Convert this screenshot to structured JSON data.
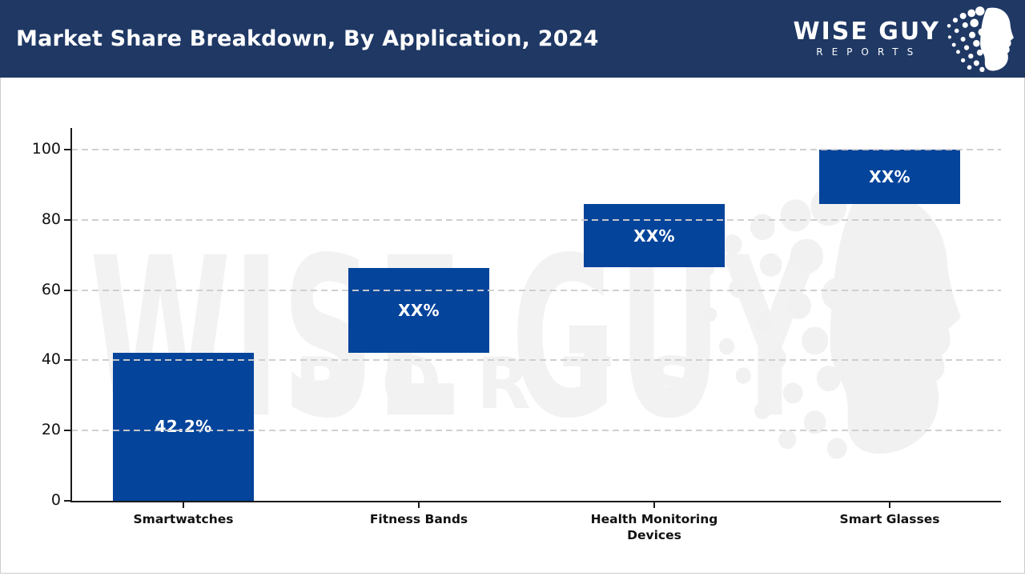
{
  "header": {
    "title": "Market Share Breakdown, By Application, 2024",
    "logo": {
      "line1": "WISE GUY",
      "line2": "REPORTS"
    }
  },
  "watermark": {
    "word1": "WISE GUY",
    "word2": "REPORTS"
  },
  "chart_data": {
    "type": "bar",
    "subtype": "waterfall",
    "title": "Market Share Breakdown, By Application, 2024",
    "xlabel": "",
    "ylabel": "",
    "ylim": [
      0,
      100
    ],
    "yticks": [
      0,
      20,
      40,
      60,
      80,
      100
    ],
    "grid": "dashed-horizontal",
    "legend": "none",
    "categories": [
      "Smartwatches",
      "Fitness Bands",
      "Health Monitoring Devices",
      "Smart Glasses"
    ],
    "segments": [
      {
        "category": "Smartwatches",
        "from": 0,
        "to": 42.2,
        "label": "42.2%"
      },
      {
        "category": "Fitness Bands",
        "from": 42.2,
        "to": 66.4,
        "label": "XX%"
      },
      {
        "category": "Health Monitoring Devices",
        "from": 66.4,
        "to": 84.4,
        "label": "XX%"
      },
      {
        "category": "Smart Glasses",
        "from": 84.4,
        "to": 100,
        "label": "XX%"
      }
    ],
    "colors": {
      "bar": "#04449b",
      "bar_label": "#ffffff",
      "header_bg": "#1f3864",
      "axis": "#1a1a1a",
      "grid": "#d3d3d3",
      "watermark": "#f2f2f2"
    }
  }
}
